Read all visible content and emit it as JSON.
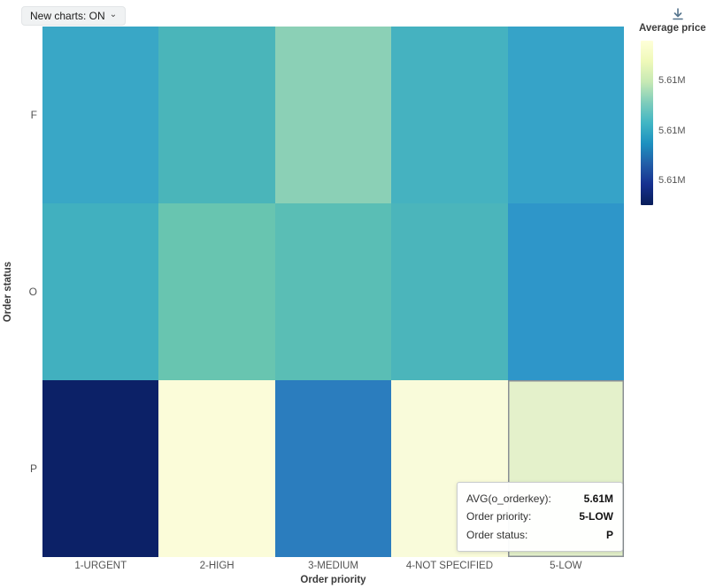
{
  "toolbar": {
    "new_charts_label": "New charts: ON",
    "chevron": "⌄"
  },
  "legend": {
    "title": "Average price",
    "ticks": [
      {
        "label": "5.61M",
        "pos": "24%"
      },
      {
        "label": "5.61M",
        "pos": "55%"
      },
      {
        "label": "5.61M",
        "pos": "85%"
      }
    ],
    "gradient": [
      "#ffffd9",
      "#eff9b9",
      "#c7e9b4",
      "#7fcdbb",
      "#41b6c4",
      "#1d91c0",
      "#225ea8",
      "#16308f",
      "#081d58"
    ]
  },
  "chart_data": {
    "type": "heatmap",
    "title": "",
    "xlabel": "Order priority",
    "ylabel": "Order status",
    "x_categories": [
      "1-URGENT",
      "2-HIGH",
      "3-MEDIUM",
      "4-NOT SPECIFIED",
      "5-LOW"
    ],
    "y_categories": [
      "F",
      "O",
      "P"
    ],
    "metric": "AVG(o_orderkey)",
    "legend_values": [
      "5.61M",
      "5.61M",
      "5.61M"
    ],
    "cells": [
      [
        "#39a7c6",
        "#4ab5ba",
        "#8bd0b6",
        "#45b2c0",
        "#36a3c8"
      ],
      [
        "#41b0bf",
        "#68c5b0",
        "#5abeb5",
        "#4bb5bb",
        "#2e96c9"
      ],
      [
        "#0c2167",
        "#fbfcd9",
        "#2b7dbe",
        "#f9fbda",
        "#e4f1cb"
      ]
    ],
    "highlighted_cell": {
      "row": 2,
      "col": 4,
      "x": "5-LOW",
      "y": "P"
    },
    "legend_position": "right",
    "grid": false
  },
  "tooltip": {
    "rows": [
      {
        "label": "AVG(o_orderkey):",
        "value": "5.61M"
      },
      {
        "label": "Order priority:",
        "value": "5-LOW"
      },
      {
        "label": "Order status:",
        "value": "P"
      }
    ]
  }
}
